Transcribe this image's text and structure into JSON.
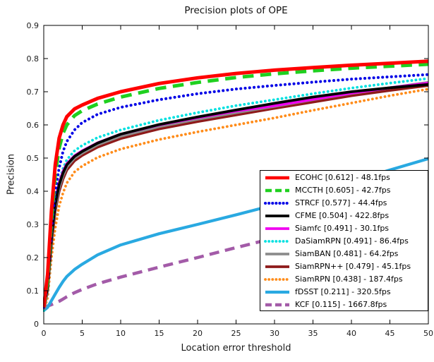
{
  "figure": {
    "title": "Precision plots of OPE",
    "xlabel": "Location error threshold",
    "ylabel": "Precision"
  },
  "chart_data": {
    "type": "line",
    "title": "Precision plots of OPE",
    "xlabel": "Location error threshold",
    "ylabel": "Precision",
    "xlim": [
      0,
      50
    ],
    "ylim": [
      0,
      0.9
    ],
    "xticks": [
      "0",
      "5",
      "10",
      "15",
      "20",
      "25",
      "30",
      "35",
      "40",
      "45",
      "50"
    ],
    "yticks": [
      "0",
      "0.1",
      "0.2",
      "0.3",
      "0.4",
      "0.5",
      "0.6",
      "0.7",
      "0.8",
      "0.9"
    ],
    "grid": false,
    "legend_position": "inside-lower-right",
    "x": [
      0,
      0.5,
      1,
      1.5,
      2,
      2.5,
      3,
      4,
      5,
      7,
      10,
      15,
      20,
      25,
      30,
      35,
      40,
      45,
      50
    ],
    "series": [
      {
        "name": "ECOHC",
        "label": "ECOHC [0.612] - 48.1fps",
        "score": 0.612,
        "fps": 48.1,
        "color": "#ff0000",
        "style": "solid",
        "width": 5,
        "values": [
          0.05,
          0.15,
          0.34,
          0.48,
          0.56,
          0.6,
          0.625,
          0.648,
          0.66,
          0.68,
          0.7,
          0.725,
          0.742,
          0.755,
          0.765,
          0.773,
          0.78,
          0.786,
          0.792
        ]
      },
      {
        "name": "MCCTH",
        "label": "MCCTH [0.605] - 42.7fps",
        "score": 0.605,
        "fps": 42.7,
        "color": "#1fd01f",
        "style": "dashed",
        "width": 5,
        "values": [
          0.05,
          0.13,
          0.31,
          0.45,
          0.53,
          0.575,
          0.6,
          0.628,
          0.643,
          0.663,
          0.684,
          0.71,
          0.728,
          0.743,
          0.754,
          0.763,
          0.771,
          0.777,
          0.783
        ]
      },
      {
        "name": "STRCF",
        "label": "STRCF [0.577] - 44.4fps",
        "score": 0.577,
        "fps": 44.4,
        "color": "#0000e6",
        "style": "dotted",
        "width": 4,
        "values": [
          0.05,
          0.12,
          0.28,
          0.4,
          0.47,
          0.52,
          0.55,
          0.585,
          0.607,
          0.632,
          0.653,
          0.676,
          0.694,
          0.708,
          0.719,
          0.729,
          0.738,
          0.745,
          0.752
        ]
      },
      {
        "name": "CFME",
        "label": "CFME [0.504] - 422.8fps",
        "score": 0.504,
        "fps": 422.8,
        "color": "#000000",
        "style": "solid",
        "width": 3.8,
        "values": [
          0.05,
          0.11,
          0.26,
          0.36,
          0.42,
          0.455,
          0.48,
          0.505,
          0.52,
          0.545,
          0.572,
          0.601,
          0.624,
          0.645,
          0.665,
          0.684,
          0.7,
          0.712,
          0.722
        ]
      },
      {
        "name": "Siamfc",
        "label": "Siamfc [0.491] - 30.1fps",
        "score": 0.491,
        "fps": 30.1,
        "color": "#f000f0",
        "style": "solid",
        "width": 3.8,
        "values": [
          0.05,
          0.12,
          0.28,
          0.37,
          0.425,
          0.46,
          0.483,
          0.507,
          0.522,
          0.546,
          0.572,
          0.6,
          0.622,
          0.642,
          0.658,
          0.677,
          0.696,
          0.712,
          0.726
        ]
      },
      {
        "name": "DaSiamRPN",
        "label": "DaSiamRPN [0.491] - 86.4fps",
        "score": 0.491,
        "fps": 86.4,
        "color": "#00e0e0",
        "style": "dotted",
        "width": 3.8,
        "values": [
          0.04,
          0.11,
          0.27,
          0.37,
          0.43,
          0.468,
          0.495,
          0.522,
          0.538,
          0.562,
          0.585,
          0.614,
          0.637,
          0.658,
          0.676,
          0.694,
          0.711,
          0.726,
          0.74
        ]
      },
      {
        "name": "SiamBAN",
        "label": "SiamBAN [0.481] - 64.2fps",
        "score": 0.481,
        "fps": 64.2,
        "color": "#8c8c8c",
        "style": "solid",
        "width": 3.8,
        "values": [
          0.04,
          0.1,
          0.25,
          0.35,
          0.41,
          0.447,
          0.473,
          0.5,
          0.515,
          0.54,
          0.566,
          0.595,
          0.617,
          0.637,
          0.656,
          0.676,
          0.695,
          0.712,
          0.728
        ]
      },
      {
        "name": "SiamRPN++",
        "label": "SiamRPN++ [0.479] - 45.1fps",
        "score": 0.479,
        "fps": 45.1,
        "color": "#8e1a1a",
        "style": "solid",
        "width": 3.8,
        "values": [
          0.04,
          0.1,
          0.24,
          0.34,
          0.4,
          0.437,
          0.464,
          0.492,
          0.508,
          0.533,
          0.559,
          0.588,
          0.61,
          0.63,
          0.65,
          0.669,
          0.688,
          0.704,
          0.719
        ]
      },
      {
        "name": "SiamRPN",
        "label": "SiamRPN [0.438] - 187.4fps",
        "score": 0.438,
        "fps": 187.4,
        "color": "#ff8c1a",
        "style": "dotted",
        "width": 3.8,
        "values": [
          0.04,
          0.08,
          0.2,
          0.29,
          0.355,
          0.395,
          0.425,
          0.458,
          0.476,
          0.502,
          0.527,
          0.556,
          0.579,
          0.6,
          0.621,
          0.644,
          0.666,
          0.688,
          0.708
        ]
      },
      {
        "name": "fDSST",
        "label": "fDSST [0.211] - 320.5fps",
        "score": 0.211,
        "fps": 320.5,
        "color": "#29a9e1",
        "style": "solid",
        "width": 4.2,
        "values": [
          0.04,
          0.05,
          0.07,
          0.09,
          0.11,
          0.128,
          0.143,
          0.164,
          0.18,
          0.208,
          0.238,
          0.272,
          0.3,
          0.329,
          0.359,
          0.393,
          0.428,
          0.464,
          0.498
        ]
      },
      {
        "name": "KCF",
        "label": "KCF [0.115] - 1667.8fps",
        "score": 0.115,
        "fps": 1667.8,
        "color": "#a35ba8",
        "style": "dashed",
        "width": 4.5,
        "values": [
          0.05,
          0.054,
          0.058,
          0.063,
          0.068,
          0.075,
          0.082,
          0.094,
          0.104,
          0.121,
          0.141,
          0.171,
          0.2,
          0.23,
          0.259,
          0.288,
          0.314,
          0.335,
          0.352
        ]
      }
    ]
  }
}
